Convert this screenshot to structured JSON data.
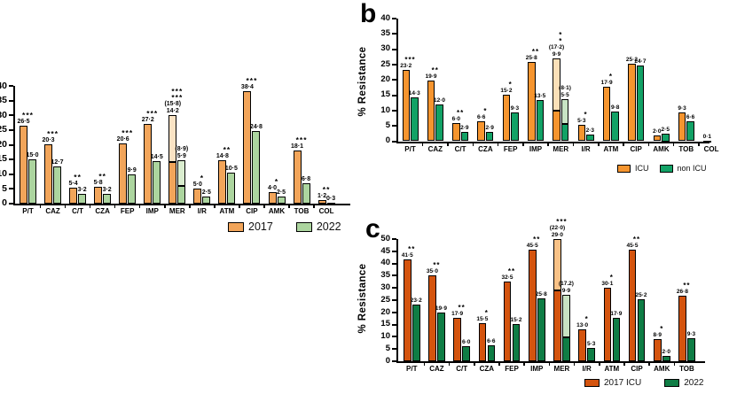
{
  "chart_data": [
    {
      "id": "a",
      "letter": "",
      "type": "bar",
      "title": "",
      "xlabel": "",
      "ylabel": "",
      "ylim": [
        0,
        40
      ],
      "ytick": 5,
      "categories": [
        "P/T",
        "CAZ",
        "C/T",
        "CZA",
        "FEP",
        "IMP",
        "MER",
        "I/R",
        "ATM",
        "CIP",
        "AMK",
        "TOB",
        "COL"
      ],
      "legend": [
        {
          "name": "2017",
          "color": "#F2A55A",
          "light": "#FAE3C4"
        },
        {
          "name": "2022",
          "color": "#ACD59F",
          "light": "#DAEDCF"
        }
      ],
      "series": [
        {
          "name": "2017",
          "values": [
            26.5,
            20.3,
            5.4,
            5.8,
            20.6,
            27.2,
            14.2,
            5.0,
            14.8,
            38.4,
            4.0,
            18.1,
            1.2
          ],
          "value_labels": [
            "26·5",
            "20·3",
            "5·4",
            "5·8",
            "20·6",
            "27·2",
            "14·2",
            "5·0",
            "14·8",
            "38·4",
            "4·0",
            "18·1",
            "1·2"
          ],
          "stack_extra": {
            "6": {
              "value": 15.8,
              "label": "(15·8)"
            }
          }
        },
        {
          "name": "2022",
          "values": [
            15.0,
            12.7,
            3.2,
            3.2,
            9.9,
            14.5,
            5.9,
            2.5,
            10.5,
            24.8,
            2.5,
            6.8,
            0.3
          ],
          "value_labels": [
            "15·0",
            "12·7",
            "3·2",
            "3·2",
            "9·9",
            "14·5",
            "5·9",
            "2·5",
            "10·5",
            "24·8",
            "2·5",
            "6·8",
            "0·3"
          ],
          "stack_extra": {
            "6": {
              "value": 8.9,
              "label": "(8·9)"
            }
          }
        }
      ],
      "significance": [
        "***",
        "***",
        "**",
        "**",
        "***",
        "***",
        [
          "***",
          "***"
        ],
        "*",
        "**",
        "***",
        "*",
        "***",
        "**"
      ]
    },
    {
      "id": "b",
      "letter": "b",
      "type": "bar",
      "title": "",
      "xlabel": "",
      "ylabel": "% Resistance",
      "ylim": [
        0,
        40
      ],
      "ytick": 5,
      "categories": [
        "P/T",
        "CAZ",
        "C/T",
        "CZA",
        "FEP",
        "IMP",
        "MER",
        "I/R",
        "ATM",
        "CIP",
        "AMK",
        "TOB",
        "COL"
      ],
      "legend": [
        {
          "name": "ICU",
          "color": "#F6952F",
          "light": "#FBE0B8"
        },
        {
          "name": "non ICU",
          "color": "#12A266",
          "light": "#C8E4C5"
        }
      ],
      "series": [
        {
          "name": "ICU",
          "values": [
            23.2,
            19.9,
            6.0,
            6.6,
            15.2,
            25.8,
            9.9,
            5.3,
            17.9,
            25.2,
            2.0,
            9.3,
            0.1
          ],
          "value_labels": [
            "23·2",
            "19·9",
            "6·0",
            "6·6",
            "15·2",
            "25·8",
            "9·9",
            "5·3",
            "17·9",
            "25·2",
            "2·0",
            "9·3",
            "0·1"
          ],
          "stack_extra": {
            "6": {
              "value": 17.2,
              "label": "(17·2)"
            }
          }
        },
        {
          "name": "non ICU",
          "values": [
            14.3,
            12.0,
            2.9,
            2.9,
            9.3,
            13.5,
            5.5,
            2.3,
            9.8,
            24.7,
            2.5,
            6.6,
            null
          ],
          "value_labels": [
            "14·3",
            "12·0",
            "2·9",
            "2·9",
            "9·3",
            "13·5",
            "5·5",
            "2·3",
            "9·8",
            "24·7",
            "2·5",
            "6·6",
            ""
          ],
          "stack_extra": {
            "6": {
              "value": 8.1,
              "label": "(8·1)"
            }
          }
        }
      ],
      "significance": [
        "***",
        "**",
        "**",
        "*",
        "*",
        "**",
        [
          "*",
          "*"
        ],
        "*",
        "*",
        "",
        "",
        "",
        ""
      ]
    },
    {
      "id": "c",
      "letter": "c",
      "type": "bar",
      "title": "",
      "xlabel": "",
      "ylabel": "% Resistance",
      "ylim": [
        0,
        50
      ],
      "ytick": 5,
      "categories": [
        "P/T",
        "CAZ",
        "C/T",
        "CZA",
        "FEP",
        "IMP",
        "MER",
        "I/R",
        "ATM",
        "CIP",
        "AMK",
        "TOB"
      ],
      "legend": [
        {
          "name": "2017 ICU",
          "color": "#D4540E",
          "light": "#F9C287"
        },
        {
          "name": "2022",
          "color": "#0F7D45",
          "light": "#C8E2C2"
        }
      ],
      "series": [
        {
          "name": "2017 ICU",
          "values": [
            41.5,
            35.0,
            17.9,
            15.5,
            32.5,
            45.5,
            29.0,
            13.0,
            30.1,
            45.5,
            8.9,
            26.8
          ],
          "value_labels": [
            "41·5",
            "35·0",
            "17·9",
            "15·5",
            "32·5",
            "45·5",
            "29·0",
            "13·0",
            "30·1",
            "45·5",
            "8·9",
            "26·8"
          ],
          "stack_extra": {
            "6": {
              "value": 22.0,
              "label": "(22·0)"
            }
          }
        },
        {
          "name": "2022",
          "values": [
            23.2,
            19.9,
            6.0,
            6.6,
            15.2,
            25.8,
            9.9,
            5.3,
            17.9,
            25.2,
            2.0,
            9.3
          ],
          "value_labels": [
            "23·2",
            "19·9",
            "6·0",
            "6·6",
            "15·2",
            "25·8",
            "9·9",
            "5·3",
            "17·9",
            "25·2",
            "2·0",
            "9·3"
          ],
          "stack_extra": {
            "6": {
              "value": 17.2,
              "label": "(17.2)"
            }
          }
        }
      ],
      "significance": [
        "**",
        "**",
        "**",
        "*",
        "**",
        "**",
        "***",
        "*",
        "*",
        "**",
        "*",
        "**"
      ]
    }
  ]
}
